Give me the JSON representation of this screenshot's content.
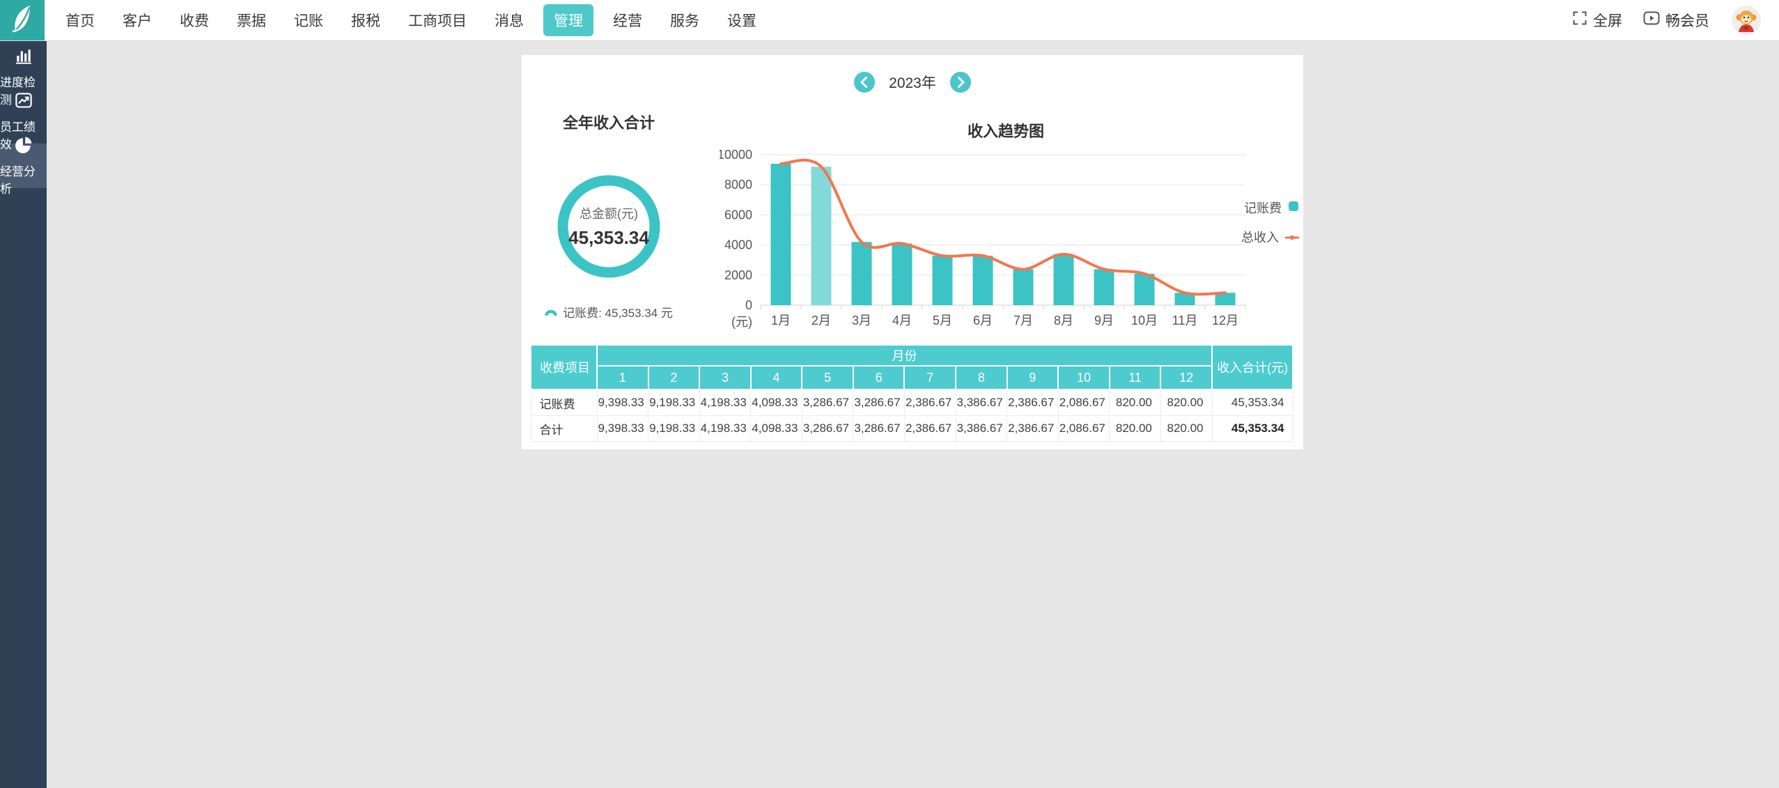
{
  "topnav": {
    "items": [
      {
        "id": "home",
        "label": "首页"
      },
      {
        "id": "customers",
        "label": "客户"
      },
      {
        "id": "fees",
        "label": "收费"
      },
      {
        "id": "invoices",
        "label": "票据"
      },
      {
        "id": "bookkeeping",
        "label": "记账"
      },
      {
        "id": "tax-filing",
        "label": "报税"
      },
      {
        "id": "business-projects",
        "label": "工商项目"
      },
      {
        "id": "messages",
        "label": "消息"
      },
      {
        "id": "management",
        "label": "管理",
        "active": true
      },
      {
        "id": "operations",
        "label": "经营"
      },
      {
        "id": "services",
        "label": "服务"
      },
      {
        "id": "settings",
        "label": "设置"
      }
    ],
    "fullscreen_label": "全屏",
    "member_label": "畅会员"
  },
  "sidebar": {
    "items": [
      {
        "id": "progress-check",
        "label": "进度检测",
        "icon": "bar-chart-icon"
      },
      {
        "id": "staff-performance",
        "label": "员工绩效",
        "icon": "line-chart-icon"
      },
      {
        "id": "business-analysis",
        "label": "经营分析",
        "icon": "pie-chart-icon",
        "active": true
      }
    ]
  },
  "panel": {
    "year": "2023年",
    "summary": {
      "title": "全年收入合计",
      "center_label": "总金额(元)",
      "center_value": "45,353.34",
      "legend": "记账费: 45,353.34 元",
      "ring_color": "#3bc3c5"
    }
  },
  "chart_data": {
    "type": "bar",
    "title": "收入趋势图",
    "categories": [
      "1月",
      "2月",
      "3月",
      "4月",
      "5月",
      "6月",
      "7月",
      "8月",
      "9月",
      "10月",
      "11月",
      "12月"
    ],
    "series": [
      {
        "name": "记账费",
        "kind": "bar",
        "values": [
          9398.33,
          9198.33,
          4198.33,
          4098.33,
          3286.67,
          3286.67,
          2386.67,
          3386.67,
          2386.67,
          2086.67,
          820.0,
          820.0
        ],
        "color": "#3bc3c5",
        "highlight_index": 1,
        "highlight_color": "#82d9da"
      },
      {
        "name": "总收入",
        "kind": "line",
        "values": [
          9398.33,
          9198.33,
          4198.33,
          4098.33,
          3286.67,
          3286.67,
          2386.67,
          3386.67,
          2386.67,
          2086.67,
          820.0,
          820.0
        ],
        "color": "#f4764e"
      }
    ],
    "ylim": [
      0,
      10000
    ],
    "yticks": [
      0,
      2000,
      4000,
      6000,
      8000,
      10000
    ],
    "y_unit": "(元)",
    "xlabel": "",
    "ylabel": "",
    "grid": true,
    "legend_position": "right"
  },
  "table": {
    "item_header": "收费项目",
    "month_group_header": "月份",
    "month_headers": [
      "1",
      "2",
      "3",
      "4",
      "5",
      "6",
      "7",
      "8",
      "9",
      "10",
      "11",
      "12"
    ],
    "total_header": "收入合计(元)",
    "rows": [
      {
        "label": "记账费",
        "values": [
          "9,398.33",
          "9,198.33",
          "4,198.33",
          "4,098.33",
          "3,286.67",
          "3,286.67",
          "2,386.67",
          "3,386.67",
          "2,386.67",
          "2,086.67",
          "820.00",
          "820.00"
        ],
        "total": "45,353.34",
        "total_bold": false
      },
      {
        "label": "合计",
        "values": [
          "9,398.33",
          "9,198.33",
          "4,198.33",
          "4,098.33",
          "3,286.67",
          "3,286.67",
          "2,386.67",
          "3,386.67",
          "2,386.67",
          "2,086.67",
          "820.00",
          "820.00"
        ],
        "total": "45,353.34",
        "total_bold": true
      }
    ]
  }
}
